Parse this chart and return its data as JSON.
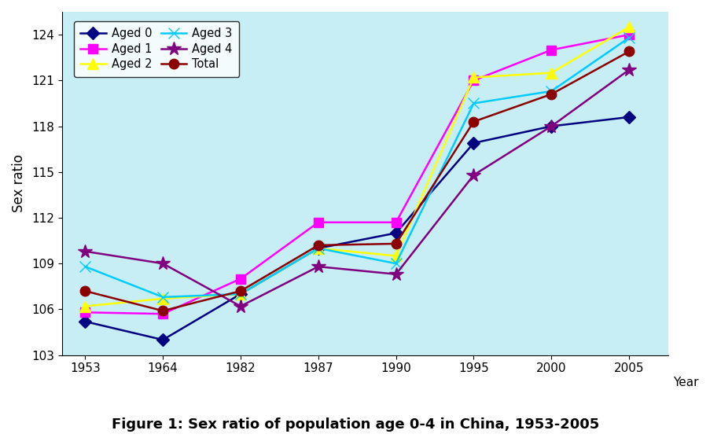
{
  "years": [
    1953,
    1964,
    1982,
    1987,
    1990,
    1995,
    2000,
    2005
  ],
  "series": {
    "Aged 0": {
      "values": [
        105.2,
        104.0,
        107.0,
        110.0,
        111.0,
        116.9,
        118.0,
        118.6
      ],
      "color": "#000080",
      "marker": "D",
      "markersize": 8,
      "linewidth": 1.8
    },
    "Aged 1": {
      "values": [
        105.8,
        105.7,
        108.0,
        111.7,
        111.7,
        121.0,
        123.0,
        124.0
      ],
      "color": "#FF00FF",
      "marker": "s",
      "markersize": 9,
      "linewidth": 1.8
    },
    "Aged 2": {
      "values": [
        106.2,
        106.7,
        107.0,
        110.0,
        109.5,
        121.2,
        121.5,
        124.5
      ],
      "color": "#FFFF00",
      "marker": "^",
      "markersize": 10,
      "linewidth": 1.8
    },
    "Aged 3": {
      "values": [
        108.8,
        106.8,
        107.0,
        110.0,
        109.0,
        119.5,
        120.3,
        123.8
      ],
      "color": "#00CCFF",
      "marker": "x",
      "markersize": 10,
      "linewidth": 1.8
    },
    "Aged 4": {
      "values": [
        109.8,
        109.0,
        106.2,
        108.8,
        108.3,
        114.8,
        118.0,
        121.7
      ],
      "color": "#800080",
      "marker": "*",
      "markersize": 13,
      "linewidth": 1.8
    },
    "Total": {
      "values": [
        107.2,
        105.9,
        107.2,
        110.2,
        110.3,
        118.3,
        120.1,
        122.9
      ],
      "color": "#8B0000",
      "marker": "o",
      "markersize": 9,
      "linewidth": 1.8
    }
  },
  "ylim": [
    103,
    125.5
  ],
  "yticks": [
    103,
    106,
    109,
    112,
    115,
    118,
    121,
    124
  ],
  "xlabel": "Year",
  "ylabel": "Sex ratio",
  "title": "Figure 1: Sex ratio of population age 0-4 in China, 1953-2005",
  "background_color": "#C8EEF5",
  "plot_order": [
    "Aged 0",
    "Aged 1",
    "Aged 2",
    "Aged 3",
    "Aged 4",
    "Total"
  ],
  "legend_order": [
    "Aged 0",
    "Aged 1",
    "Aged 2",
    "Aged 3",
    "Aged 4",
    "Total"
  ]
}
